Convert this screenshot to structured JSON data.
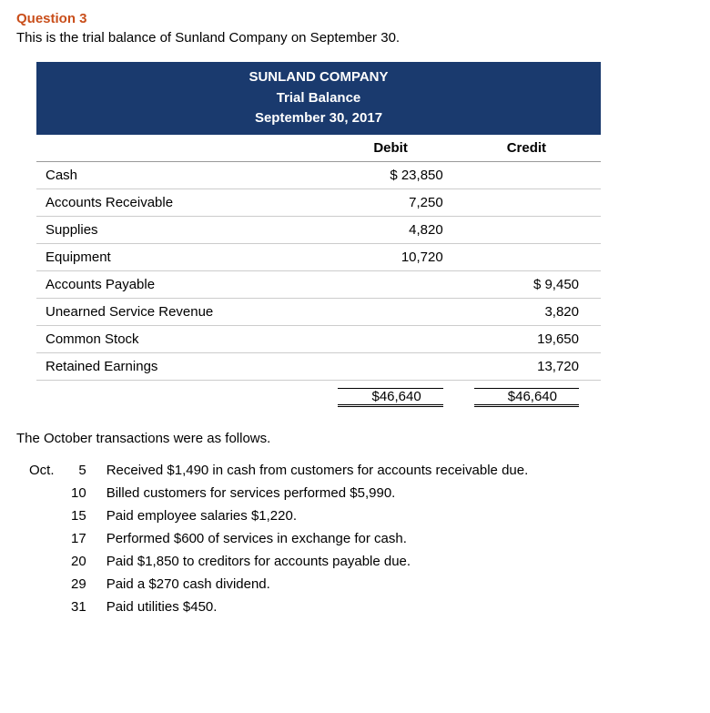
{
  "question": {
    "label": "Question 3",
    "intro": "This is the trial balance of Sunland Company on September 30."
  },
  "trial_balance": {
    "header_company": "SUNLAND COMPANY",
    "header_title": "Trial Balance",
    "header_date": "September 30, 2017",
    "col_debit": "Debit",
    "col_credit": "Credit",
    "header_bg": "#1a3a6e",
    "header_fg": "#ffffff",
    "rows": [
      {
        "label": "Cash",
        "debit": "$ 23,850",
        "credit": ""
      },
      {
        "label": "Accounts Receivable",
        "debit": "7,250",
        "credit": ""
      },
      {
        "label": "Supplies",
        "debit": "4,820",
        "credit": ""
      },
      {
        "label": "Equipment",
        "debit": "10,720",
        "credit": ""
      },
      {
        "label": "Accounts Payable",
        "debit": "",
        "credit": "$ 9,450"
      },
      {
        "label": "Unearned Service Revenue",
        "debit": "",
        "credit": "3,820"
      },
      {
        "label": "Common Stock",
        "debit": "",
        "credit": "19,650"
      },
      {
        "label": "Retained Earnings",
        "debit": "",
        "credit": "13,720"
      }
    ],
    "total_debit": "$46,640",
    "total_credit": "$46,640"
  },
  "transactions": {
    "intro": "The October transactions were as follows.",
    "month_label": "Oct.",
    "items": [
      {
        "day": "5",
        "desc": "Received $1,490 in cash from customers for accounts receivable due."
      },
      {
        "day": "10",
        "desc": "Billed customers for services performed $5,990."
      },
      {
        "day": "15",
        "desc": "Paid employee salaries $1,220."
      },
      {
        "day": "17",
        "desc": "Performed $600 of services in exchange for cash."
      },
      {
        "day": "20",
        "desc": "Paid $1,850 to creditors for accounts payable due."
      },
      {
        "day": "29",
        "desc": "Paid a $270 cash dividend."
      },
      {
        "day": "31",
        "desc": "Paid utilities $450."
      }
    ]
  }
}
